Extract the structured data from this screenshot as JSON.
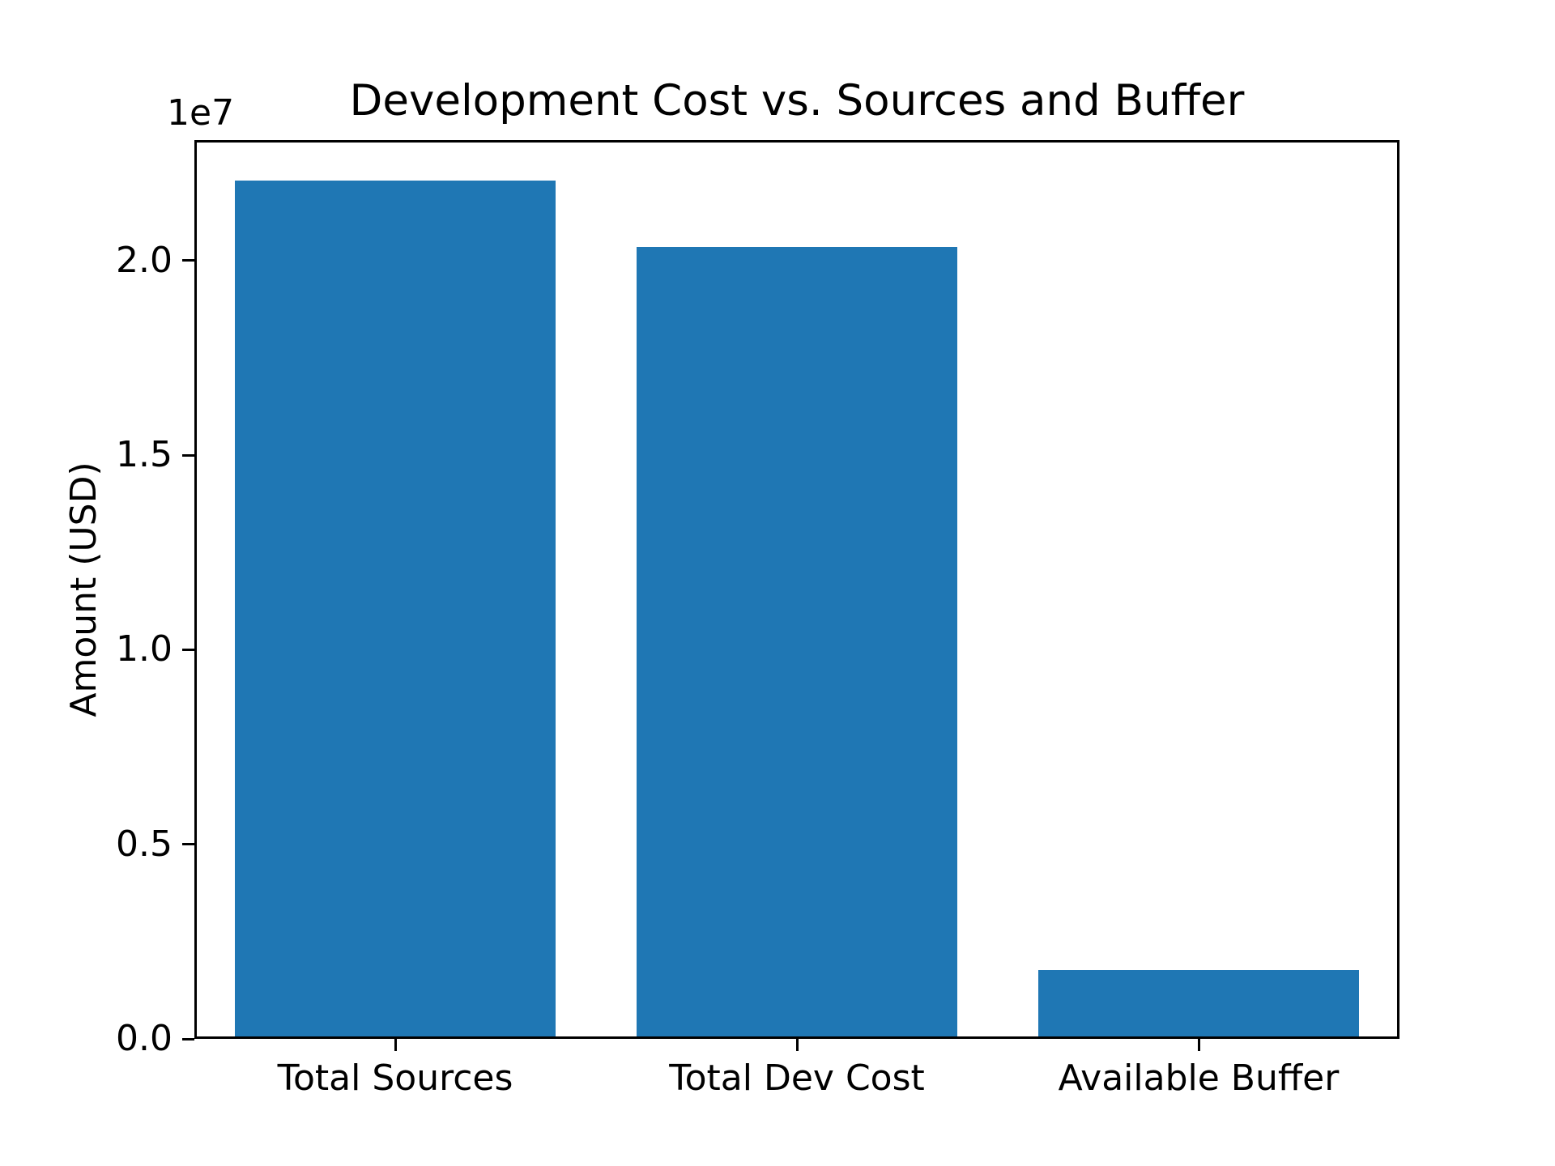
{
  "chart_data": {
    "type": "bar",
    "title": "Development Cost vs. Sources and Buffer",
    "xlabel": "",
    "ylabel": "Amount (USD)",
    "offset_text": "1e7",
    "categories": [
      "Total Sources",
      "Total Dev Cost",
      "Available Buffer"
    ],
    "values": [
      22000000,
      20300000,
      1700000
    ],
    "ylim": [
      0,
      23100000
    ],
    "yticks": [
      0,
      5000000,
      10000000,
      15000000,
      20000000
    ],
    "ytick_labels": [
      "0.0",
      "0.5",
      "1.0",
      "1.5",
      "2.0"
    ],
    "bar_color": "#1f77b4",
    "bar_width_fraction": 0.8,
    "grid": false,
    "legend": null,
    "background_color": "#ffffff",
    "text_color": "#000000"
  }
}
